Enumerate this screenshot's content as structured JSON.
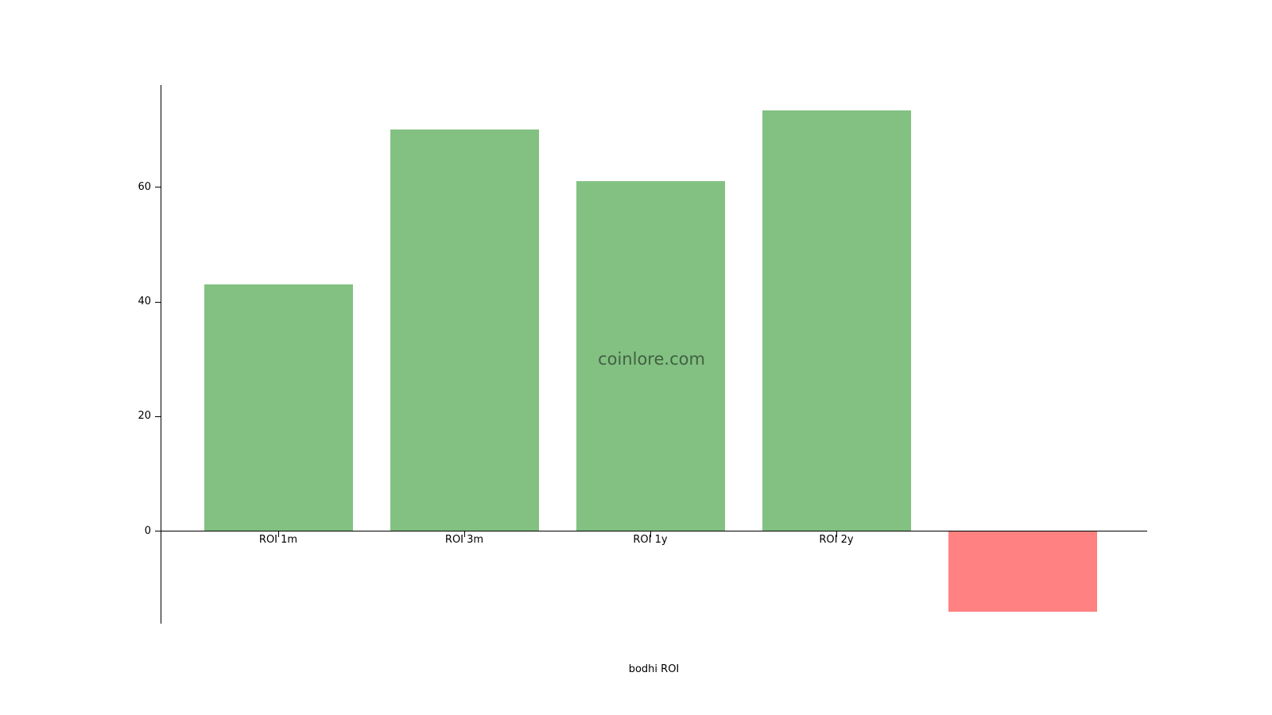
{
  "page": {
    "background": "#ffffff"
  },
  "chart_data": {
    "type": "bar",
    "title": "",
    "xlabel": "bodhi ROI",
    "watermark": "coinlore.com",
    "categories": [
      "ROI 1m",
      "ROI 3m",
      "ROI 1y",
      "ROI 2y",
      ""
    ],
    "values": [
      43,
      70,
      61,
      73.3,
      -14
    ],
    "yticks": [
      0,
      20,
      40,
      60
    ],
    "ylim": [
      -16.2,
      77.8
    ],
    "grid": false,
    "legend": "none",
    "colors": {
      "positive": "#82c182",
      "negative": "#ff8181",
      "axis": "#000000",
      "tick_label": "#000000",
      "watermark": "rgba(0,0,0,0.5)"
    }
  }
}
